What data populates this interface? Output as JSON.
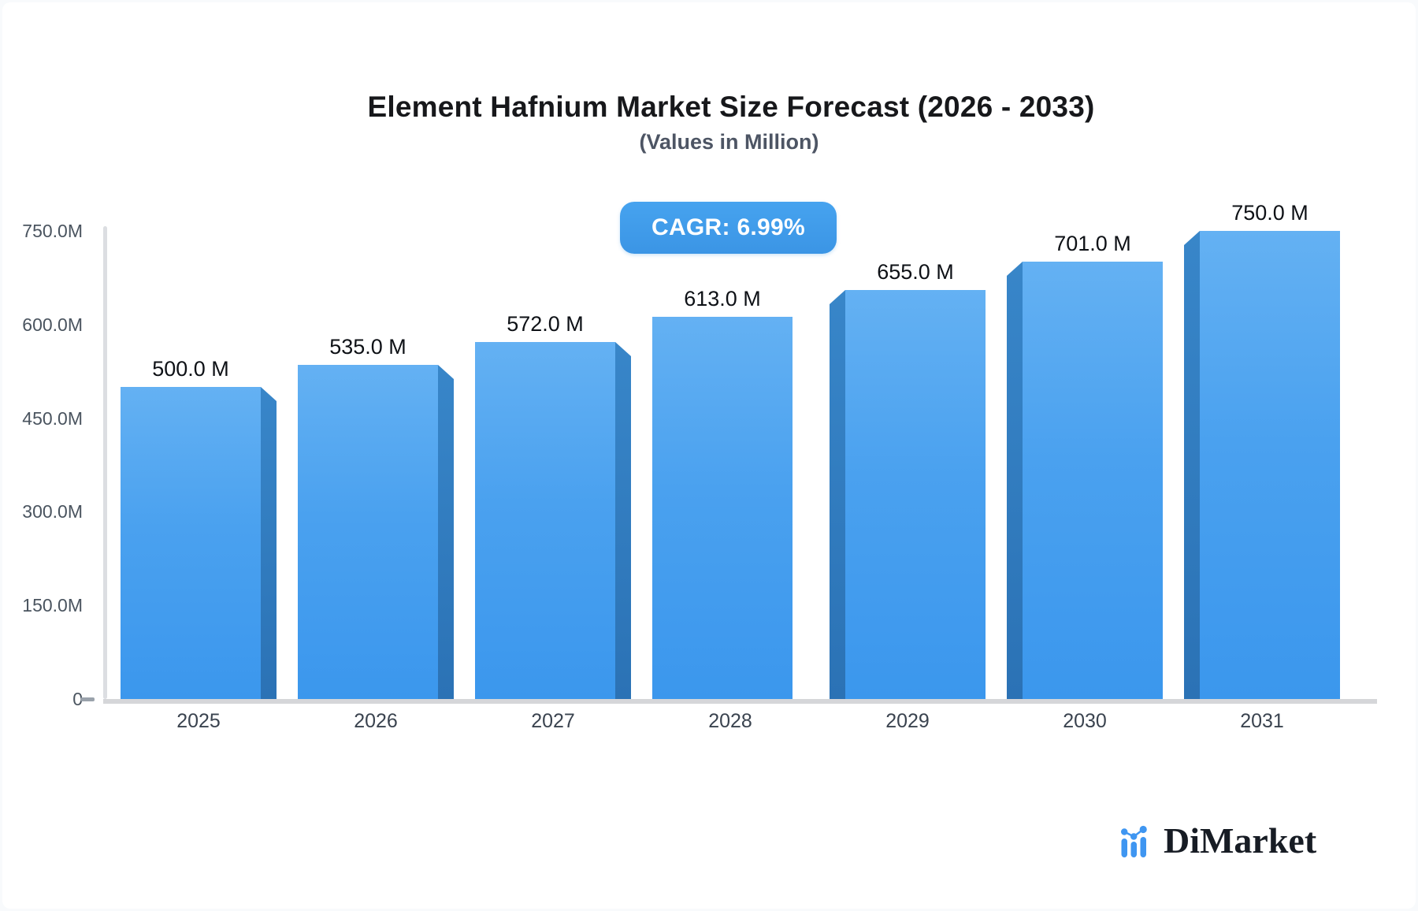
{
  "page": {
    "background": "#f8fafc",
    "card_background": "#ffffff"
  },
  "header": {
    "title": "Element Hafnium Market Size Forecast (2026 - 2033)",
    "subtitle": "(Values in Million)"
  },
  "badge": {
    "label": "CAGR: 6.99%",
    "background": "#3f9ceb",
    "text_color": "#ffffff"
  },
  "chart_data": {
    "type": "bar",
    "title": "Element Hafnium Market Size Forecast (2026 - 2033)",
    "subtitle": "(Values in Million)",
    "categories": [
      "2025",
      "2026",
      "2027",
      "2028",
      "2029",
      "2030",
      "2031"
    ],
    "series": [
      {
        "name": "Market Size (Million)",
        "values": [
          500,
          535,
          572,
          613,
          655,
          701,
          750
        ]
      }
    ],
    "value_labels": [
      "500.0 M",
      "535.0 M",
      "572.0 M",
      "613.0 M",
      "655.0 M",
      "701.0 M",
      "750.0 M"
    ],
    "y_axis": {
      "range": [
        0,
        750
      ],
      "ticks": [
        {
          "label": "750.0M",
          "value": 750
        },
        {
          "label": "600.0M",
          "value": 600
        },
        {
          "label": "450.0M",
          "value": 450
        },
        {
          "label": "300.0M",
          "value": 300
        },
        {
          "label": "150.0M",
          "value": 150
        },
        {
          "label": "0",
          "value": 0
        }
      ]
    },
    "annotation": "CAGR: 6.99%",
    "grid": "off",
    "legend": "none",
    "style_3d": "beveled side panels facing plot center",
    "bar_colors": {
      "face_top": "#64b1f3",
      "face_bottom": "#3b97ed",
      "side": "#2e79b9"
    }
  },
  "footer": {
    "logo_text": "DiMarket",
    "logo_icon": "bar-line-chart-icon",
    "logo_icon_color": "#3f96f1",
    "logo_text_color": "#171c24"
  }
}
